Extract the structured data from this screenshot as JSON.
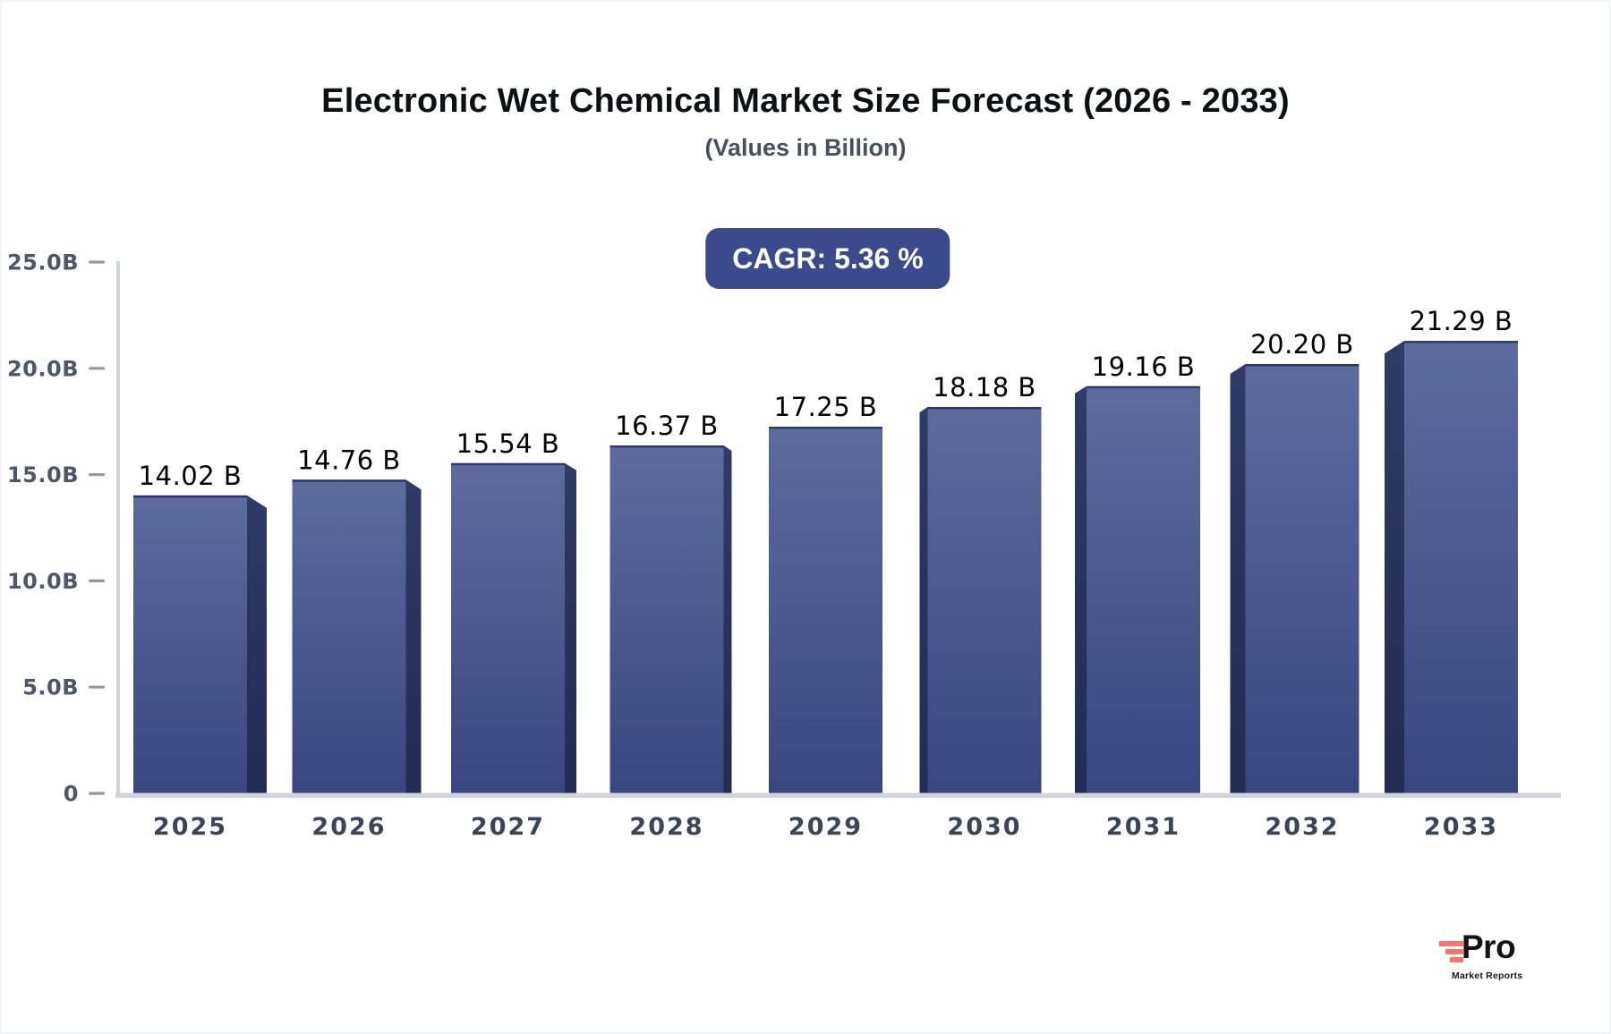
{
  "chart_data": {
    "type": "bar",
    "title": "Electronic Wet Chemical Market Size Forecast (2026 - 2033)",
    "subtitle": "(Values in Billion)",
    "cagr_label": "CAGR: 5.36 %",
    "categories": [
      "2025",
      "2026",
      "2027",
      "2028",
      "2029",
      "2030",
      "2031",
      "2032",
      "2033"
    ],
    "values": [
      14.02,
      14.76,
      15.54,
      16.37,
      17.25,
      18.18,
      19.16,
      20.2,
      21.29
    ],
    "value_labels": [
      "14.02 B",
      "14.76 B",
      "15.54 B",
      "16.37 B",
      "17.25 B",
      "18.18 B",
      "19.16 B",
      "20.20 B",
      "21.29 B"
    ],
    "unit": "B",
    "xlabel": "",
    "ylabel": "",
    "ylim": [
      0,
      25
    ],
    "yticks": [
      {
        "value": 0,
        "label": "0"
      },
      {
        "value": 5,
        "label": "5.0B"
      },
      {
        "value": 10,
        "label": "10.0B"
      },
      {
        "value": 15,
        "label": "15.0B"
      },
      {
        "value": 20,
        "label": "20.0B"
      },
      {
        "value": 25,
        "label": "25.0B"
      }
    ],
    "grid": false,
    "legend": false,
    "colors": {
      "bar_front_top": "#5e6b9e",
      "bar_front_bottom": "#3a4680",
      "bar_side_top": "#2e3a68",
      "bar_side_bottom": "#232c52",
      "bar_top_edge": "#2c3867",
      "axis_line": "#d2d5dd",
      "tick_dash": "#9097a5",
      "tick_label": "#4d5769",
      "x_label": "#3a445a",
      "value_label": "#000000",
      "badge_bg": "#3a4a8c",
      "badge_text": "#ffffff"
    }
  },
  "logo": {
    "name": "Pro",
    "tagline": "Market Reports",
    "accent": "#f4746e"
  }
}
